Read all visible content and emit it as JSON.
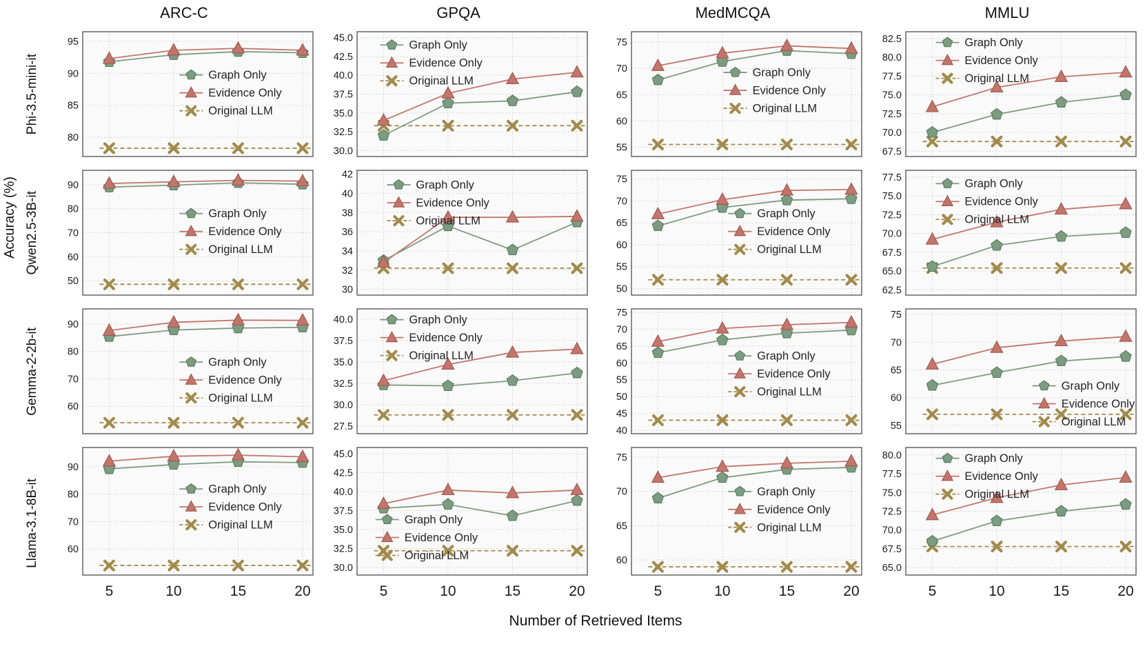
{
  "ylabel": "Accuracy (%)",
  "xlabel": "Number of Retrieved Items",
  "columns": [
    "ARC-C",
    "GPQA",
    "MedMCQA",
    "MMLU"
  ],
  "rows": [
    "Phi-3.5-mini-it",
    "Qwen2.5-3B-it",
    "Gemma-2-2b-it",
    "Llama-3.1-8B-it"
  ],
  "legend_labels": [
    "Graph Only",
    "Evidence Only",
    "Original LLM"
  ],
  "xticks": [
    "5",
    "10",
    "15",
    "20"
  ],
  "colors": {
    "graph": "#7d9b80",
    "graph_edge": "#55795c",
    "evidence": "#c2756b",
    "evidence_edge": "#9e564e",
    "original": "#a18a4b",
    "grid": "#c9c9c9",
    "border": "#3f3f3f",
    "panel_bg": "#fafafa",
    "text": "#1b1b1b"
  },
  "chart_data": [
    {
      "model": "Phi-3.5-mini-it",
      "dataset": "ARC-C",
      "type": "line",
      "x": [
        5,
        10,
        15,
        20
      ],
      "ylim": [
        77.0,
        96.5
      ],
      "yticks": [
        "95",
        "90",
        "85",
        "80"
      ],
      "series": [
        {
          "name": "Graph Only",
          "values": [
            91.8,
            92.9,
            93.4,
            93.2
          ]
        },
        {
          "name": "Evidence Only",
          "values": [
            92.3,
            93.6,
            93.9,
            93.6
          ]
        },
        {
          "name": "Original LLM",
          "values": [
            78.3,
            78.3,
            78.3,
            78.3
          ],
          "style": "dashed"
        }
      ],
      "legend": [
        0.42,
        0.28
      ],
      "show_x": false
    },
    {
      "model": "Phi-3.5-mini-it",
      "dataset": "GPQA",
      "type": "line",
      "x": [
        5,
        10,
        15,
        20
      ],
      "ylim": [
        29.2,
        45.8
      ],
      "yticks": [
        "45.0",
        "42.5",
        "40.0",
        "37.5",
        "35.0",
        "32.5",
        "30.0"
      ],
      "series": [
        {
          "name": "Graph Only",
          "values": [
            32.0,
            36.3,
            36.6,
            37.8
          ]
        },
        {
          "name": "Evidence Only",
          "values": [
            34.0,
            37.6,
            39.5,
            40.4
          ]
        },
        {
          "name": "Original LLM",
          "values": [
            33.3,
            33.3,
            33.3,
            33.3
          ],
          "style": "dashed"
        }
      ],
      "legend": [
        0.1,
        0.04
      ],
      "show_x": false
    },
    {
      "model": "Phi-3.5-mini-it",
      "dataset": "MedMCQA",
      "type": "line",
      "x": [
        5,
        10,
        15,
        20
      ],
      "ylim": [
        53.2,
        77.0
      ],
      "yticks": [
        "75",
        "70",
        "65",
        "60",
        "55"
      ],
      "series": [
        {
          "name": "Graph Only",
          "values": [
            67.8,
            71.3,
            73.4,
            72.8
          ]
        },
        {
          "name": "Evidence Only",
          "values": [
            70.5,
            72.9,
            74.3,
            73.8
          ]
        },
        {
          "name": "Original LLM",
          "values": [
            55.5,
            55.5,
            55.5,
            55.5
          ],
          "style": "dashed"
        }
      ],
      "legend": [
        0.4,
        0.26
      ],
      "show_x": false
    },
    {
      "model": "Phi-3.5-mini-it",
      "dataset": "MMLU",
      "type": "line",
      "x": [
        5,
        10,
        15,
        20
      ],
      "ylim": [
        66.8,
        83.4
      ],
      "yticks": [
        "82.5",
        "80.0",
        "77.5",
        "75.0",
        "72.5",
        "70.0",
        "67.5"
      ],
      "series": [
        {
          "name": "Graph Only",
          "values": [
            70.0,
            72.4,
            74.0,
            75.0
          ]
        },
        {
          "name": "Evidence Only",
          "values": [
            73.4,
            76.0,
            77.4,
            78.0
          ]
        },
        {
          "name": "Original LLM",
          "values": [
            68.8,
            68.8,
            68.8,
            68.8
          ],
          "style": "dashed"
        }
      ],
      "legend": [
        0.13,
        0.02
      ],
      "show_x": false
    },
    {
      "model": "Qwen2.5-3B-it",
      "dataset": "ARC-C",
      "type": "line",
      "x": [
        5,
        10,
        15,
        20
      ],
      "ylim": [
        44.0,
        96.0
      ],
      "yticks": [
        "90",
        "80",
        "70",
        "60",
        "50"
      ],
      "series": [
        {
          "name": "Graph Only",
          "values": [
            89.0,
            89.8,
            90.8,
            90.2
          ]
        },
        {
          "name": "Evidence Only",
          "values": [
            90.5,
            91.2,
            91.8,
            91.5
          ]
        },
        {
          "name": "Original LLM",
          "values": [
            48.5,
            48.5,
            48.5,
            48.5
          ],
          "style": "dashed"
        }
      ],
      "legend": [
        0.42,
        0.28
      ],
      "show_x": false
    },
    {
      "model": "Qwen2.5-3B-it",
      "dataset": "GPQA",
      "type": "line",
      "x": [
        5,
        10,
        15,
        20
      ],
      "ylim": [
        29.4,
        42.4
      ],
      "yticks": [
        "42",
        "40",
        "38",
        "36",
        "34",
        "32",
        "30"
      ],
      "series": [
        {
          "name": "Graph Only",
          "values": [
            33.0,
            36.6,
            34.1,
            37.0
          ]
        },
        {
          "name": "Evidence Only",
          "values": [
            32.8,
            37.5,
            37.5,
            37.6
          ]
        },
        {
          "name": "Original LLM",
          "values": [
            32.2,
            32.2,
            32.2,
            32.2
          ],
          "style": "dashed"
        }
      ],
      "legend": [
        0.13,
        0.05
      ],
      "show_x": false
    },
    {
      "model": "Qwen2.5-3B-it",
      "dataset": "MedMCQA",
      "type": "line",
      "x": [
        5,
        10,
        15,
        20
      ],
      "ylim": [
        48.5,
        77.0
      ],
      "yticks": [
        "75",
        "70",
        "65",
        "60",
        "55",
        "50"
      ],
      "series": [
        {
          "name": "Graph Only",
          "values": [
            64.3,
            68.5,
            70.2,
            70.5
          ]
        },
        {
          "name": "Evidence Only",
          "values": [
            67.0,
            70.3,
            72.4,
            72.6
          ]
        },
        {
          "name": "Original LLM",
          "values": [
            52.0,
            52.0,
            52.0,
            52.0
          ],
          "style": "dashed"
        }
      ],
      "legend": [
        0.42,
        0.28
      ],
      "show_x": false
    },
    {
      "model": "Qwen2.5-3B-it",
      "dataset": "MMLU",
      "type": "line",
      "x": [
        5,
        10,
        15,
        20
      ],
      "ylim": [
        61.8,
        78.4
      ],
      "yticks": [
        "77.5",
        "75.0",
        "72.5",
        "70.0",
        "67.5",
        "65.0",
        "62.5"
      ],
      "series": [
        {
          "name": "Graph Only",
          "values": [
            65.6,
            68.4,
            69.6,
            70.1
          ]
        },
        {
          "name": "Evidence Only",
          "values": [
            69.2,
            71.5,
            73.2,
            73.9
          ]
        },
        {
          "name": "Original LLM",
          "values": [
            65.4,
            65.4,
            65.4,
            65.4
          ],
          "style": "dashed"
        }
      ],
      "legend": [
        0.13,
        0.04
      ],
      "show_x": false
    },
    {
      "model": "Gemma-2-2b-it",
      "dataset": "ARC-C",
      "type": "line",
      "x": [
        5,
        10,
        15,
        20
      ],
      "ylim": [
        50.0,
        95.5
      ],
      "yticks": [
        "90",
        "80",
        "70",
        "60"
      ],
      "series": [
        {
          "name": "Graph Only",
          "values": [
            85.4,
            87.8,
            88.5,
            88.8
          ]
        },
        {
          "name": "Evidence Only",
          "values": [
            87.6,
            90.6,
            91.4,
            91.3
          ]
        },
        {
          "name": "Original LLM",
          "values": [
            54.0,
            54.0,
            54.0,
            54.0
          ],
          "style": "dashed"
        }
      ],
      "legend": [
        0.42,
        0.36
      ],
      "show_x": false
    },
    {
      "model": "Gemma-2-2b-it",
      "dataset": "GPQA",
      "type": "line",
      "x": [
        5,
        10,
        15,
        20
      ],
      "ylim": [
        26.6,
        41.2
      ],
      "yticks": [
        "40.0",
        "37.5",
        "35.0",
        "32.5",
        "30.0",
        "27.5"
      ],
      "series": [
        {
          "name": "Graph Only",
          "values": [
            32.3,
            32.2,
            32.8,
            33.7
          ]
        },
        {
          "name": "Evidence Only",
          "values": [
            32.8,
            34.7,
            36.1,
            36.5
          ]
        },
        {
          "name": "Original LLM",
          "values": [
            28.8,
            28.8,
            28.8,
            28.8
          ],
          "style": "dashed"
        }
      ],
      "legend": [
        0.1,
        0.02
      ],
      "show_x": false
    },
    {
      "model": "Gemma-2-2b-it",
      "dataset": "MedMCQA",
      "type": "line",
      "x": [
        5,
        10,
        15,
        20
      ],
      "ylim": [
        39.0,
        76.0
      ],
      "yticks": [
        "75",
        "70",
        "65",
        "60",
        "55",
        "50",
        "45",
        "40"
      ],
      "series": [
        {
          "name": "Graph Only",
          "values": [
            63.0,
            66.8,
            68.8,
            69.7
          ]
        },
        {
          "name": "Evidence Only",
          "values": [
            66.3,
            70.2,
            71.3,
            72.0
          ]
        },
        {
          "name": "Original LLM",
          "values": [
            43.0,
            43.0,
            43.0,
            43.0
          ],
          "style": "dashed"
        }
      ],
      "legend": [
        0.42,
        0.31
      ],
      "show_x": false
    },
    {
      "model": "Gemma-2-2b-it",
      "dataset": "MMLU",
      "type": "line",
      "x": [
        5,
        10,
        15,
        20
      ],
      "ylim": [
        53.5,
        76.0
      ],
      "yticks": [
        "75",
        "70",
        "65",
        "60",
        "55"
      ],
      "series": [
        {
          "name": "Graph Only",
          "values": [
            62.2,
            64.5,
            66.6,
            67.4
          ]
        },
        {
          "name": "Evidence Only",
          "values": [
            66.0,
            69.0,
            70.2,
            71.0
          ]
        },
        {
          "name": "Original LLM",
          "values": [
            57.0,
            57.0,
            57.0,
            57.0
          ],
          "style": "dashed"
        }
      ],
      "legend": [
        0.55,
        0.55
      ],
      "show_x": false
    },
    {
      "model": "Llama-3.1-8B-it",
      "dataset": "ARC-C",
      "type": "line",
      "x": [
        5,
        10,
        15,
        20
      ],
      "ylim": [
        50.5,
        97.0
      ],
      "yticks": [
        "90",
        "80",
        "70",
        "60"
      ],
      "series": [
        {
          "name": "Graph Only",
          "values": [
            89.2,
            90.8,
            91.8,
            91.5
          ]
        },
        {
          "name": "Evidence Only",
          "values": [
            92.0,
            93.8,
            94.2,
            93.6
          ]
        },
        {
          "name": "Original LLM",
          "values": [
            54.0,
            54.0,
            54.0,
            54.0
          ],
          "style": "dashed"
        }
      ],
      "legend": [
        0.42,
        0.26
      ],
      "show_x": true
    },
    {
      "model": "Llama-3.1-8B-it",
      "dataset": "GPQA",
      "type": "line",
      "x": [
        5,
        10,
        15,
        20
      ],
      "ylim": [
        29.0,
        45.8
      ],
      "yticks": [
        "45.0",
        "42.5",
        "40.0",
        "37.5",
        "35.0",
        "32.5",
        "30.0"
      ],
      "series": [
        {
          "name": "Graph Only",
          "values": [
            37.8,
            38.3,
            36.8,
            38.8
          ]
        },
        {
          "name": "Evidence Only",
          "values": [
            38.4,
            40.2,
            39.8,
            40.2
          ]
        },
        {
          "name": "Original LLM",
          "values": [
            32.2,
            32.2,
            32.2,
            32.2
          ],
          "style": "dashed"
        }
      ],
      "legend": [
        0.08,
        0.5
      ],
      "show_x": true
    },
    {
      "model": "Llama-3.1-8B-it",
      "dataset": "MedMCQA",
      "type": "line",
      "x": [
        5,
        10,
        15,
        20
      ],
      "ylim": [
        57.8,
        76.4
      ],
      "yticks": [
        "75",
        "70",
        "65",
        "60"
      ],
      "series": [
        {
          "name": "Graph Only",
          "values": [
            69.0,
            72.0,
            73.2,
            73.5
          ]
        },
        {
          "name": "Evidence Only",
          "values": [
            72.0,
            73.6,
            74.1,
            74.4
          ]
        },
        {
          "name": "Original LLM",
          "values": [
            59.0,
            59.0,
            59.0,
            59.0
          ],
          "style": "dashed"
        }
      ],
      "legend": [
        0.42,
        0.28
      ],
      "show_x": true
    },
    {
      "model": "Llama-3.1-8B-it",
      "dataset": "MMLU",
      "type": "line",
      "x": [
        5,
        10,
        15,
        20
      ],
      "ylim": [
        64.0,
        81.0
      ],
      "yticks": [
        "80.0",
        "77.5",
        "75.0",
        "72.5",
        "70.0",
        "67.5",
        "65.0"
      ],
      "series": [
        {
          "name": "Graph Only",
          "values": [
            68.5,
            71.2,
            72.5,
            73.4
          ]
        },
        {
          "name": "Evidence Only",
          "values": [
            72.0,
            74.3,
            76.0,
            77.0
          ]
        },
        {
          "name": "Original LLM",
          "values": [
            67.8,
            67.8,
            67.8,
            67.8
          ],
          "style": "dashed"
        }
      ],
      "legend": [
        0.13,
        0.02
      ],
      "show_x": true
    }
  ]
}
